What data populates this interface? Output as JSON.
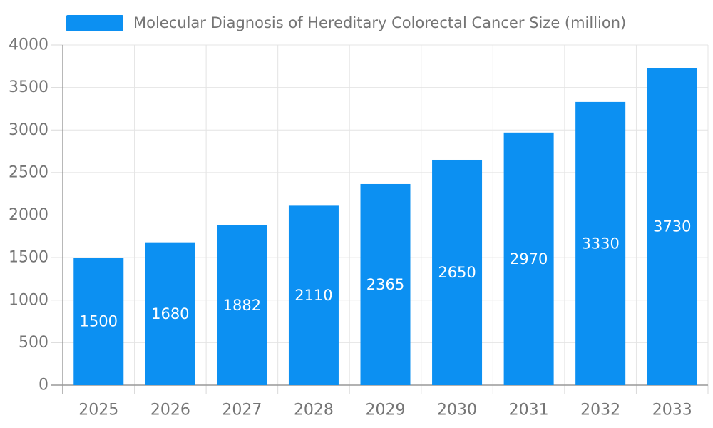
{
  "chart_data": {
    "type": "bar",
    "title": "Molecular Diagnosis of Hereditary Colorectal Cancer Size (million)",
    "legend": {
      "label": "Molecular Diagnosis of Hereditary Colorectal Cancer Size (million)",
      "position": "top-left"
    },
    "categories": [
      "2025",
      "2026",
      "2027",
      "2028",
      "2029",
      "2030",
      "2031",
      "2032",
      "2033"
    ],
    "series": [
      {
        "name": "Molecular Diagnosis of Hereditary Colorectal Cancer Size (million)",
        "values": [
          1500,
          1680,
          1882,
          2110,
          2365,
          2650,
          2970,
          3330,
          3730
        ]
      }
    ],
    "bar_value_labels": [
      "1500",
      "1680",
      "1882",
      "2110",
      "2365",
      "2650",
      "2970",
      "3330",
      "3730"
    ],
    "xlabel": "",
    "ylabel": "",
    "ylim": [
      0,
      4000
    ],
    "yticks": [
      0,
      500,
      1000,
      1500,
      2000,
      2500,
      3000,
      3500,
      4000
    ],
    "grid": true,
    "colors": {
      "bar": "#0C90F2",
      "bar_label": "#FFFFFF",
      "axis_text": "#757575",
      "axis_line": "#999999",
      "gridline": "#E4E4E4",
      "tick": "#D9D9D9",
      "background": "#FFFFFF"
    }
  }
}
